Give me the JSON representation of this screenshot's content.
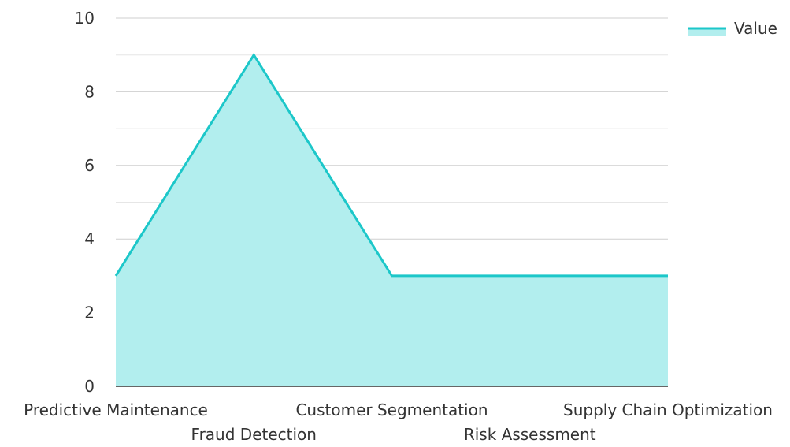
{
  "chart_data": {
    "type": "area",
    "title": "",
    "xlabel": "",
    "ylabel": "",
    "categories": [
      "Predictive Maintenance",
      "Fraud Detection",
      "Customer Segmentation",
      "Risk Assessment",
      "Supply Chain Optimization"
    ],
    "series": [
      {
        "name": "Value",
        "values": [
          3,
          9,
          3,
          3,
          3
        ]
      }
    ],
    "ylim": [
      0,
      10
    ],
    "yticks": [
      "0",
      "2",
      "4",
      "6",
      "8",
      "10"
    ],
    "grid": true,
    "legend": "top-right",
    "colors": {
      "line": "#1cc7c9",
      "fill": "#b2eeee",
      "grid": "#d0d0d0",
      "axis": "#333333"
    }
  }
}
